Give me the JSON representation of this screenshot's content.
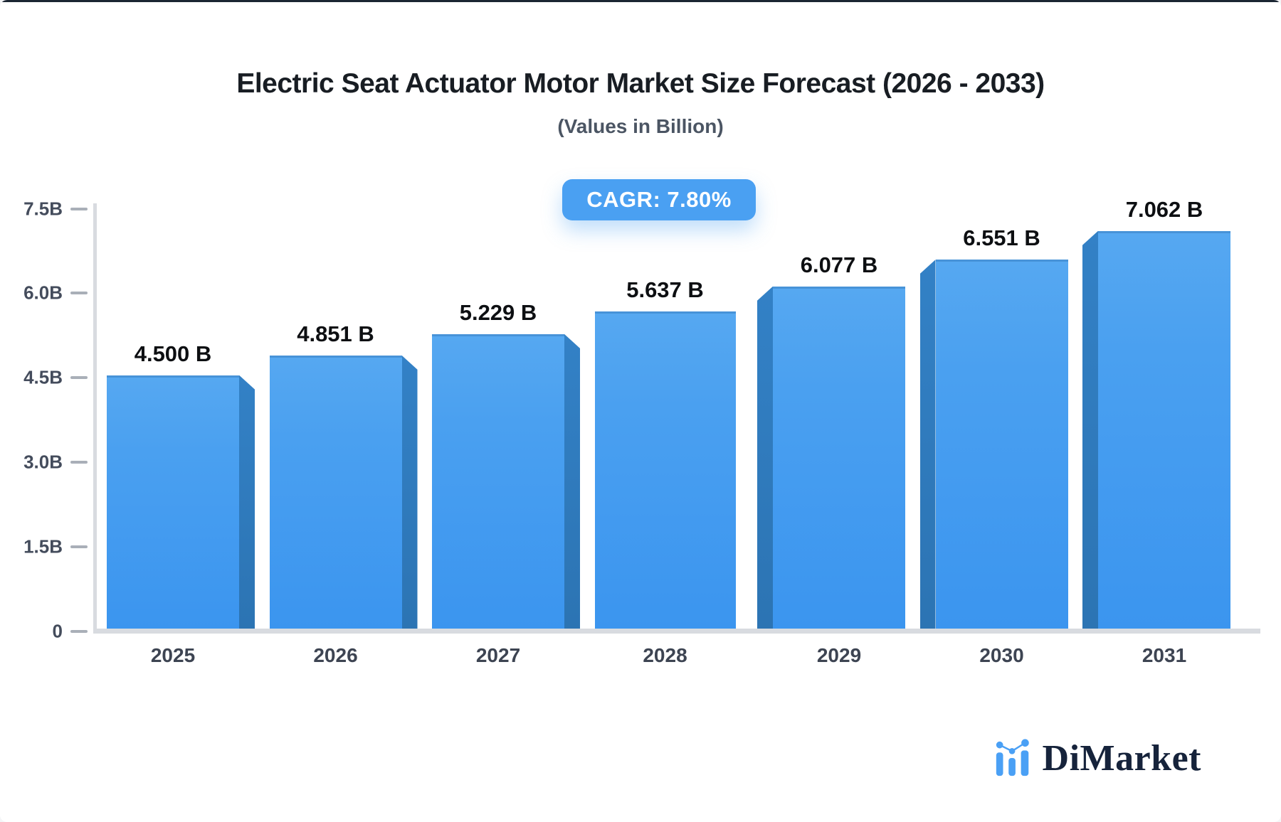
{
  "header": {
    "title": "Electric Seat Actuator Motor Market Size Forecast (2026 - 2033)",
    "subtitle": "(Values in Billion)"
  },
  "badge": {
    "label": "CAGR: 7.80%",
    "bg_color": "#4aa0f2",
    "text_color": "#ffffff"
  },
  "chart_data": {
    "type": "bar",
    "categories": [
      "2025",
      "2026",
      "2027",
      "2028",
      "2029",
      "2030",
      "2031"
    ],
    "values": [
      4.5,
      4.851,
      5.229,
      5.637,
      6.077,
      6.551,
      7.062
    ],
    "value_labels": [
      "4.500 B",
      "4.851 B",
      "5.229 B",
      "5.637 B",
      "6.077 B",
      "6.551 B",
      "7.062 B"
    ],
    "title": "Electric Seat Actuator Motor Market Size Forecast (2026 - 2033)",
    "subtitle": "(Values in Billion)",
    "xlabel": "",
    "ylabel": "",
    "ylim": [
      0,
      7.5
    ],
    "yticks": [
      {
        "label": "7.5B",
        "value": 7.5
      },
      {
        "label": "6.0B",
        "value": 6.0
      },
      {
        "label": "4.5B",
        "value": 4.5
      },
      {
        "label": "3.0B",
        "value": 3.0
      },
      {
        "label": "1.5B",
        "value": 1.5
      },
      {
        "label": "0",
        "value": 0
      }
    ],
    "grid": false,
    "legend": "none",
    "bar_face_top_color": "#56a8f1",
    "bar_face_bottom_color": "#3b95ef",
    "bar_side_color": "#2e78b8",
    "axis_color": "#d8dbe0",
    "perspective_sides": [
      "right",
      "right",
      "right",
      "none",
      "left",
      "left",
      "left"
    ]
  },
  "footer": {
    "brand": "DiMarket",
    "logo_icon": "bar-chart-logo-icon",
    "brand_color": "#16233b",
    "icon_color": "#4aa0f5"
  }
}
